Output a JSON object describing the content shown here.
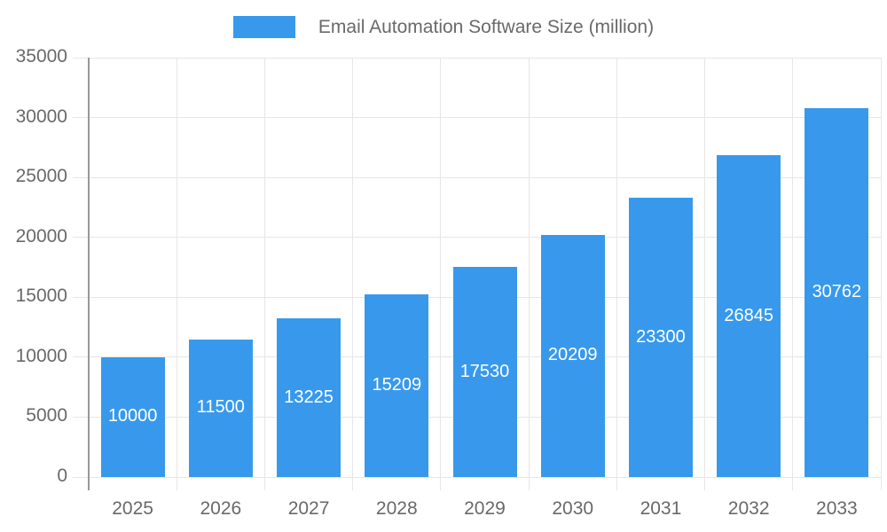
{
  "legend": {
    "label": "Email Automation Software Size (million)",
    "swatch_color": "#3899EC"
  },
  "chart_data": {
    "type": "bar",
    "title": "Email Automation Software Size (million)",
    "categories": [
      "2025",
      "2026",
      "2027",
      "2028",
      "2029",
      "2030",
      "2031",
      "2032",
      "2033"
    ],
    "values": [
      10000,
      11500,
      13225,
      15209,
      17530,
      20209,
      23300,
      26845,
      30762
    ],
    "value_labels": [
      "10000",
      "11500",
      "13225",
      "15209",
      "17530",
      "20209",
      "23300",
      "26845",
      "30762"
    ],
    "xlabel": "",
    "ylabel": "",
    "ylim": [
      0,
      35000
    ],
    "y_ticks": [
      0,
      5000,
      10000,
      15000,
      20000,
      25000,
      30000,
      35000
    ],
    "grid": true,
    "legend_position": "top",
    "colors": {
      "bar": "#3899EC",
      "value_label": "#ffffff",
      "axis_text": "#696969",
      "gridline": "#e6e6e6",
      "axis_line": "#999999"
    }
  }
}
